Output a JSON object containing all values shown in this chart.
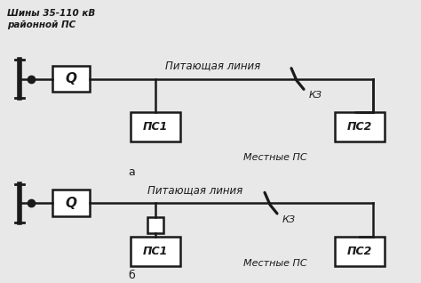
{
  "bg_color": "#e8e8e8",
  "line_color": "#1a1a1a",
  "text_color": "#1a1a1a",
  "label_shiny": "Шины 35-110 кВ\nрайонной ПС",
  "label_питающая_a": "Питающая линия",
  "label_питающая_b": "Питающая линия",
  "label_КЗ": "КЗ",
  "label_ПС1": "ПС1",
  "label_ПС2": "ПС2",
  "label_местные_a": "Местные ПС",
  "label_местные_b": "Местные ПС",
  "label_а": "а",
  "label_б": "б",
  "label_Q": "Q",
  "fig_w": 4.74,
  "fig_h": 3.18,
  "dpi": 100
}
